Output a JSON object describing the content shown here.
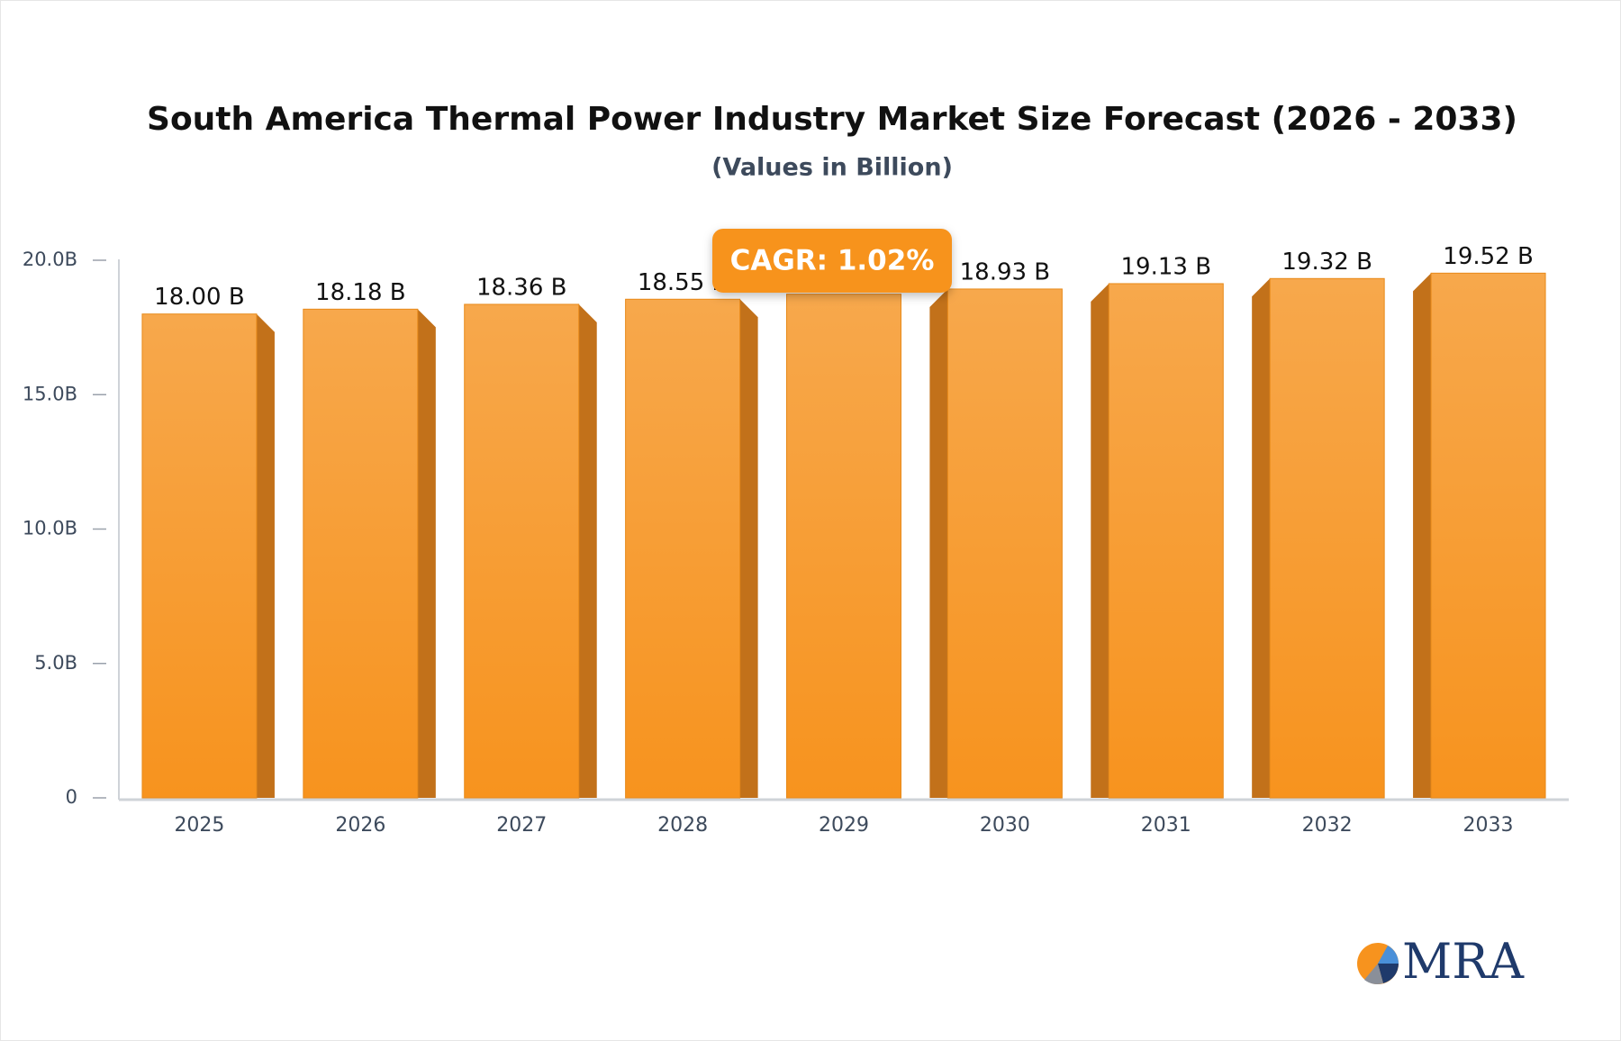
{
  "chart_data": {
    "type": "bar",
    "title": "South America Thermal Power Industry Market Size Forecast (2026 - 2033)",
    "subtitle": "(Values in Billion)",
    "categories": [
      "2025",
      "2026",
      "2027",
      "2028",
      "2029",
      "2030",
      "2031",
      "2032",
      "2033"
    ],
    "values": [
      18.0,
      18.18,
      18.36,
      18.55,
      18.74,
      18.93,
      19.13,
      19.32,
      19.52
    ],
    "value_labels": [
      "18.00 B",
      "18.18 B",
      "18.36 B",
      "18.55 B",
      null,
      "18.93 B",
      "19.13 B",
      "19.32 B",
      "19.52 B"
    ],
    "color": "#f7941e",
    "ylim": [
      0,
      20
    ],
    "yticks": [
      0,
      {
        "value": 5,
        "label": "5.0B"
      },
      {
        "value": 10,
        "label": "10.0B"
      },
      {
        "value": 15,
        "label": "15.0B"
      },
      {
        "value": 20,
        "label": "20.0B"
      }
    ],
    "annotation": "CAGR: 1.02%",
    "logo": "MRA"
  }
}
